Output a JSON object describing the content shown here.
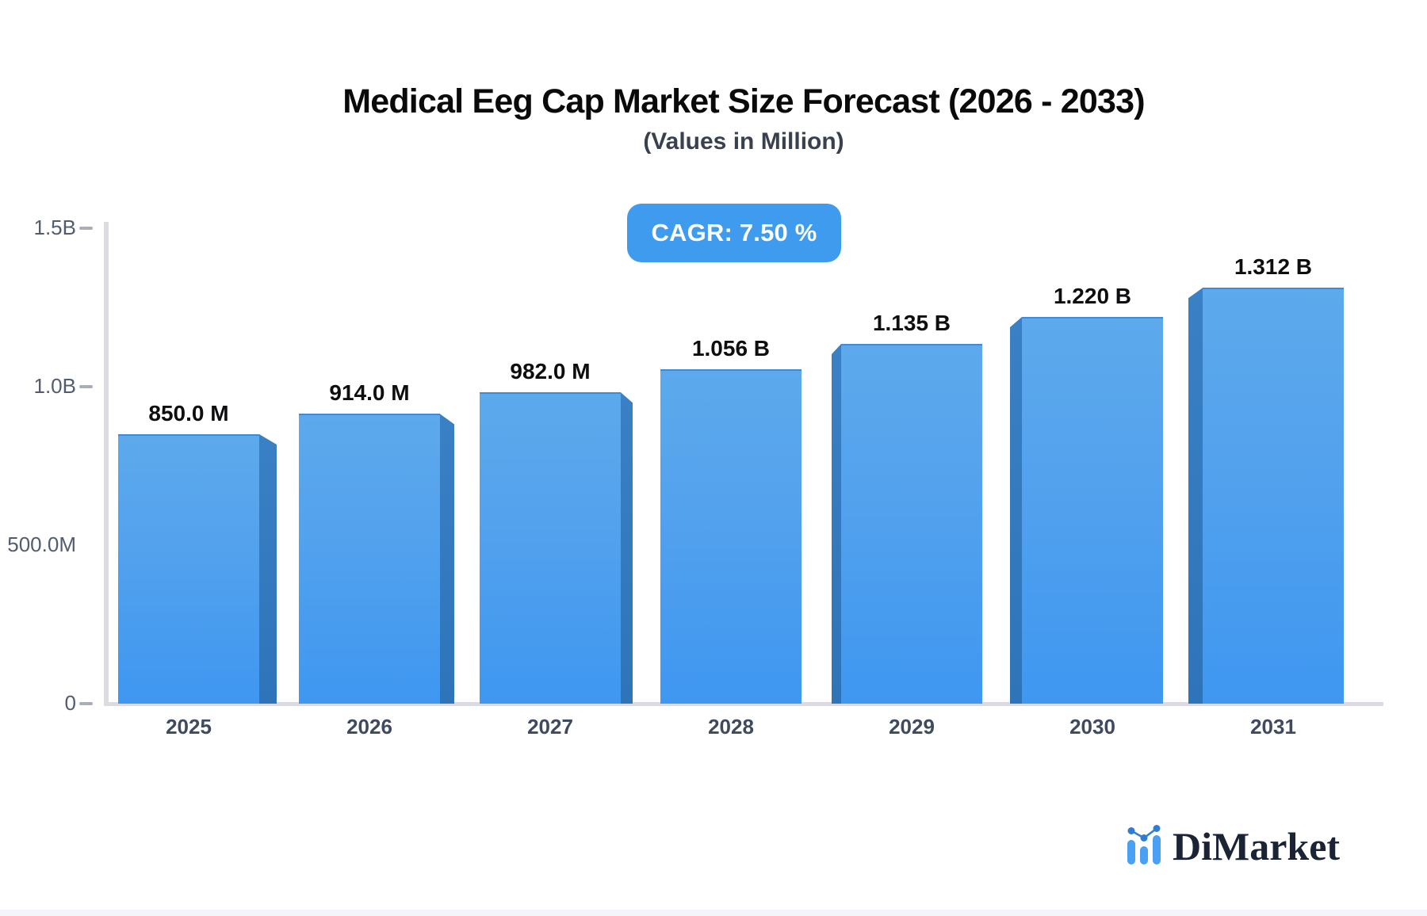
{
  "page": {
    "background": "#f3f5f8",
    "card_background": "#ffffff"
  },
  "header": {
    "title": "Medical Eeg Cap Market Size Forecast (2026 - 2033)",
    "subtitle": "(Values in Million)",
    "cagr_badge": "CAGR: 7.50 %"
  },
  "brand": {
    "name": "DiMarket",
    "icon": "mini-bar-chart-icon"
  },
  "colors": {
    "bar_face_top": "#5DA9EC",
    "bar_face_bottom": "#3F97F0",
    "bar_side": "#2E74B9",
    "bar_top_edge": "#3E8BD7",
    "badge_bg": "#3F9BEE",
    "badge_text": "#FFFFFF",
    "axis_line": "#DADCE2",
    "tick_dash": "#A8AFB9",
    "y_label_text": "#515D6E",
    "x_label_text": "#3E4A5D",
    "value_label_text": "#0E0E10",
    "title_text": "#0A0A0A",
    "subtitle_text": "#39414F",
    "brand_text": "#1B2435",
    "brand_icon_blue": "#4AA0F2"
  },
  "chart_data": {
    "type": "bar",
    "title": "Medical Eeg Cap Market Size Forecast (2026 - 2033)",
    "subtitle": "(Values in Million)",
    "cagr_percent": 7.5,
    "categories": [
      "2025",
      "2026",
      "2027",
      "2028",
      "2029",
      "2030",
      "2031"
    ],
    "values_in_millions": [
      850,
      914,
      982,
      1056,
      1135,
      1220,
      1312
    ],
    "bar_labels": [
      "850.0 M",
      "914.0 M",
      "982.0 M",
      "1.056 B",
      "1.135 B",
      "1.220 B",
      "1.312 B"
    ],
    "y_axis": {
      "range_millions": [
        0,
        1500
      ],
      "ticks": [
        {
          "label": "1.5B",
          "value_millions": 1500,
          "dash": true
        },
        {
          "label": "1.0B",
          "value_millions": 1000,
          "dash": true
        },
        {
          "label": "500.0M",
          "value_millions": 500,
          "dash": false
        },
        {
          "label": "0",
          "value_millions": 0,
          "dash": true
        }
      ]
    },
    "grid": false,
    "legend": false,
    "bar_style": "3d-extruded-blue"
  }
}
